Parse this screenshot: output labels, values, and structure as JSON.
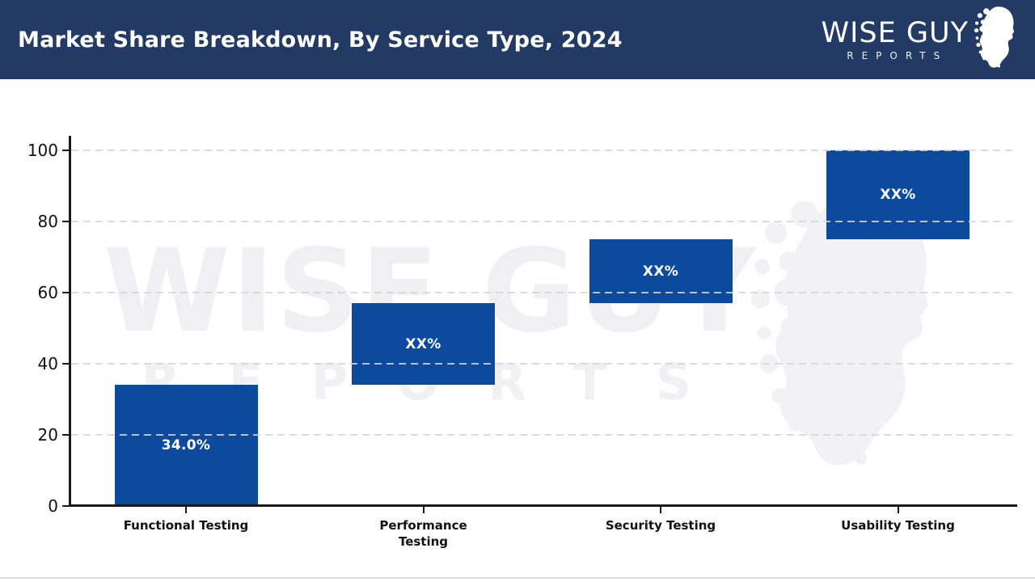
{
  "header": {
    "title": "Market Share Breakdown, By Service Type, 2024",
    "logo": {
      "line1": "WISE GUY",
      "line2": "REPORTS"
    }
  },
  "watermark": {
    "line1": "WISE GUY",
    "line2": "REPORTS"
  },
  "colors": {
    "header_bg": "#223a64",
    "bar": "#0c4a9e",
    "bar_label": "#ffffff",
    "grid": "#d6d6d6",
    "axis": "#1a1a1a",
    "watermark": "#f1f1f4"
  },
  "chart_data": {
    "type": "bar",
    "subtype": "waterfall",
    "title": "Market Share Breakdown, By Service Type, 2024",
    "categories": [
      "Functional Testing",
      "Performance Testing",
      "Security Testing",
      "Usability Testing"
    ],
    "category_label_lines": [
      [
        "Functional Testing"
      ],
      [
        "Performance",
        "Testing"
      ],
      [
        "Security Testing"
      ],
      [
        "Usability Testing"
      ]
    ],
    "segments": [
      [
        0,
        34
      ],
      [
        34,
        57
      ],
      [
        57,
        75
      ],
      [
        75,
        100
      ]
    ],
    "bar_labels": [
      "34.0%",
      "XX%",
      "XX%",
      "XX%"
    ],
    "yticks": [
      0,
      20,
      40,
      60,
      80,
      100
    ],
    "ylim": [
      0,
      100
    ],
    "grid": "dashed-horizontal",
    "legend": "none",
    "xlabel": "",
    "ylabel": ""
  }
}
